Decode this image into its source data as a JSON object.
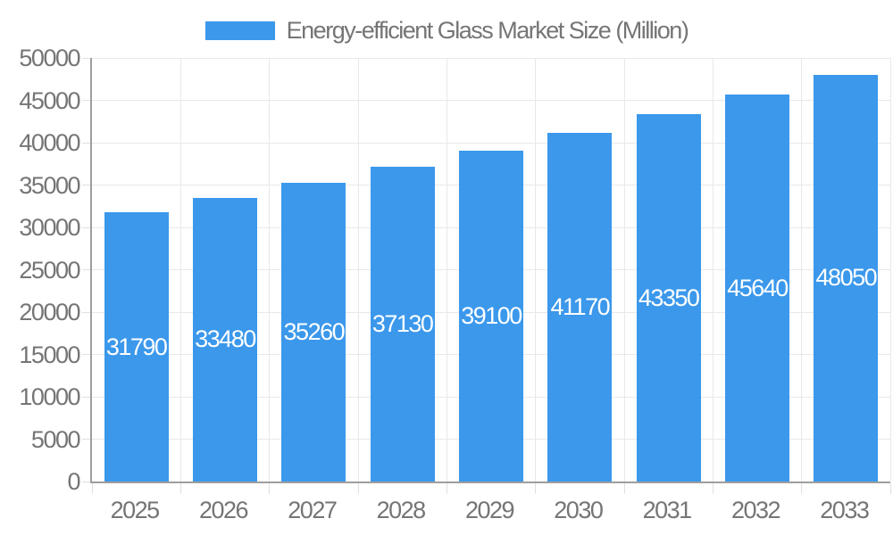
{
  "legend": {
    "label": "Energy-efficient Glass Market Size (Million)"
  },
  "chart_data": {
    "type": "bar",
    "title": "Energy-efficient Glass Market Size (Million)",
    "categories": [
      "2025",
      "2026",
      "2027",
      "2028",
      "2029",
      "2030",
      "2031",
      "2032",
      "2033"
    ],
    "series": [
      {
        "name": "Energy-efficient Glass Market Size (Million)",
        "values": [
          31790,
          33480,
          35260,
          37130,
          39100,
          41170,
          43350,
          45640,
          48050
        ]
      }
    ],
    "value_labels": [
      "31790",
      "33480",
      "35260",
      "37130",
      "39100",
      "41170",
      "43350",
      "45640",
      "48050"
    ],
    "xlabel": "",
    "ylabel": "",
    "ylim": [
      0,
      50000
    ],
    "ytick_step": 5000,
    "ytick_labels": [
      "0",
      "5000",
      "10000",
      "15000",
      "20000",
      "25000",
      "30000",
      "35000",
      "40000",
      "45000",
      "50000"
    ],
    "grid": true,
    "legend_position": "top",
    "value_labels_shown": true
  },
  "colors": {
    "bar": "#3B98EB",
    "value_label": "#ffffff",
    "axis_text": "#757575",
    "axis_line": "#9e9e9e",
    "grid_line": "#e8e8e8",
    "tick_line": "#e0e0e0",
    "background": "#ffffff"
  }
}
